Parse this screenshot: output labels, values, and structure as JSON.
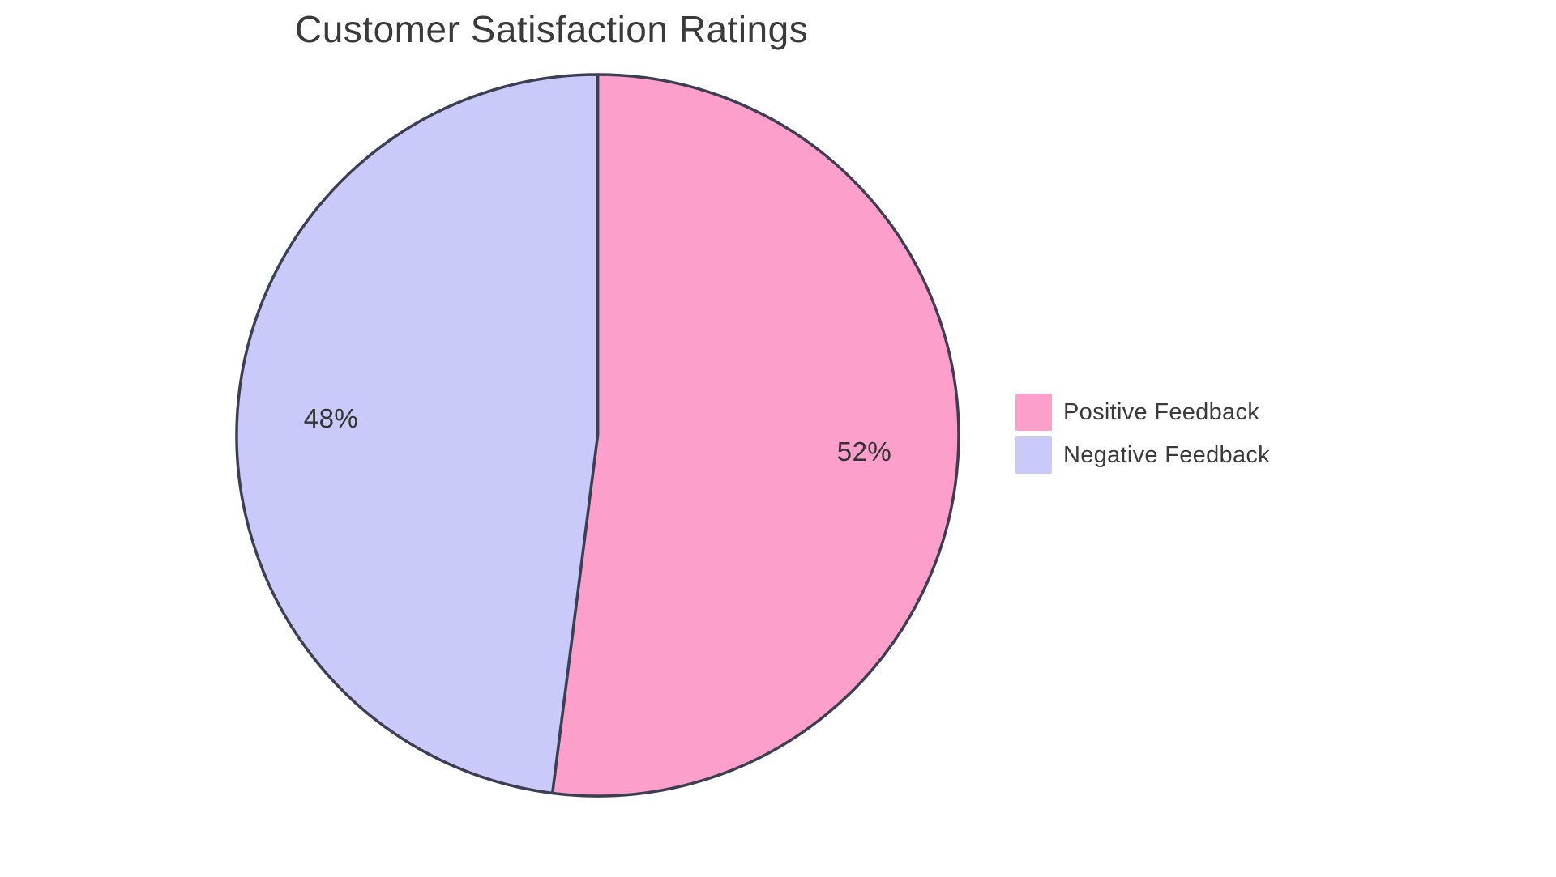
{
  "page": {
    "background_color": "#ffffff"
  },
  "chart_data": {
    "type": "pie",
    "title": "Customer Satisfaction Ratings",
    "categories": [
      "Positive Feedback",
      "Negative Feedback"
    ],
    "values": [
      52,
      48
    ],
    "slices": [
      {
        "label": "Positive Feedback",
        "value": 52,
        "pct_label": "52%",
        "color": "#FC9FCB"
      },
      {
        "label": "Negative Feedback",
        "value": 48,
        "pct_label": "48%",
        "color": "#C9C9FA"
      }
    ],
    "border_color": "#3C3F54",
    "title_color": "#3a3a3a",
    "label_color": "#333333",
    "legend_position": "right",
    "start_angle_deg": 0,
    "direction": "clockwise"
  }
}
